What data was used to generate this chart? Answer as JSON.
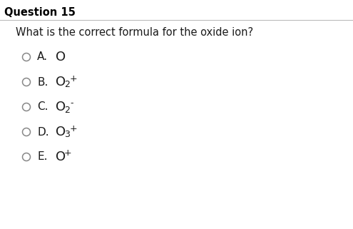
{
  "title": "Question 15",
  "question": "What is the correct formula for the oxide ion?",
  "options": [
    {
      "label": "A.",
      "base": "O",
      "sub": "",
      "sup": ""
    },
    {
      "label": "B.",
      "base": "O",
      "sub": "2",
      "sup": "+"
    },
    {
      "label": "C.",
      "base": "O",
      "sub": "2",
      "sup": "-"
    },
    {
      "label": "D.",
      "base": "O",
      "sub": "3",
      "sup": "+"
    },
    {
      "label": "E.",
      "base": "O",
      "sub": "",
      "sup": "+"
    }
  ],
  "bg_color": "#ffffff",
  "text_color": "#1a1a1a",
  "title_color": "#000000",
  "line_color": "#bbbbbb",
  "circle_color": "#888888",
  "title_fontsize": 10.5,
  "question_fontsize": 10.5,
  "option_fontsize": 11,
  "base_fontsize": 13,
  "small_fontsize": 9
}
